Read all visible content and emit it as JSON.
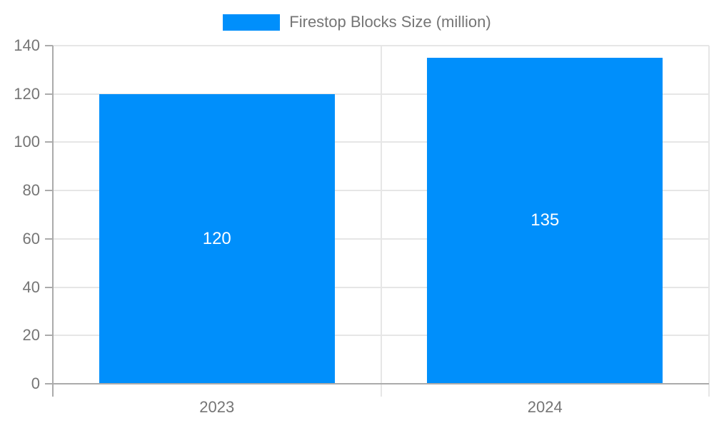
{
  "chart_data": {
    "type": "bar",
    "legend": {
      "label": "Firestop Blocks Size (million)",
      "position": "top"
    },
    "categories": [
      "2023",
      "2024"
    ],
    "series": [
      {
        "name": "Firestop Blocks Size (million)",
        "values": [
          120,
          135
        ]
      }
    ],
    "data_labels": [
      "120",
      "135"
    ],
    "ylim": [
      0,
      140
    ],
    "yticks": [
      0,
      20,
      40,
      60,
      80,
      100,
      120,
      140
    ],
    "grid": true,
    "colors": {
      "bar": "#008FFB",
      "axis_text": "#757575",
      "gridline": "#E6E6E6",
      "axis_line": "#ABABAB",
      "data_label": "#FFFFFF",
      "background": "#FFFFFF"
    }
  }
}
